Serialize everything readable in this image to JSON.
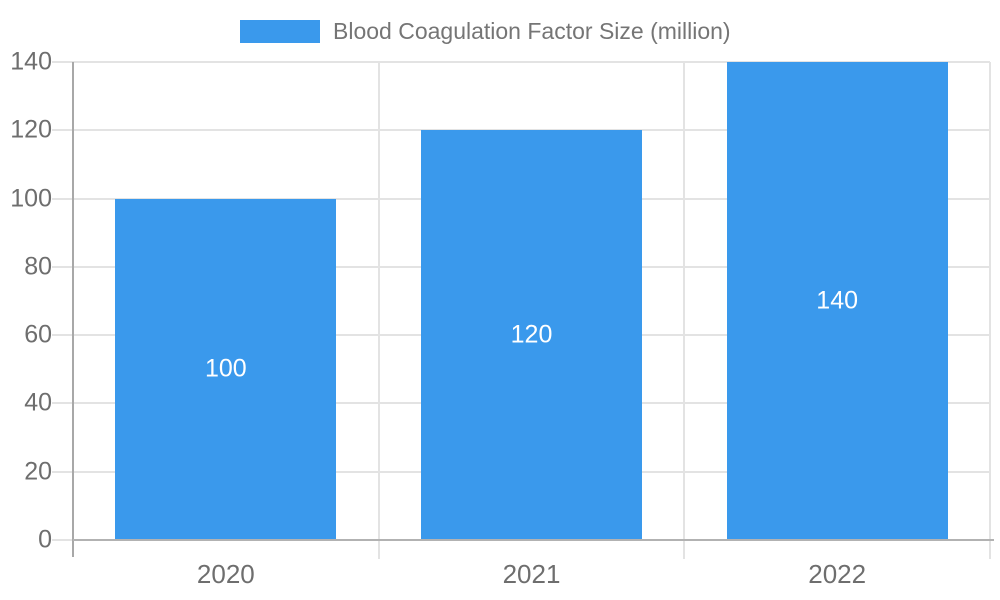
{
  "legend": {
    "label": "Blood Coagulation Factor Size (million)"
  },
  "chart_data": {
    "type": "bar",
    "title": "Blood Coagulation Factor Size (million)",
    "categories": [
      "2020",
      "2021",
      "2022"
    ],
    "values": [
      100,
      120,
      140
    ],
    "bar_labels": [
      "100",
      "120",
      "140"
    ],
    "series": [
      {
        "name": "Blood Coagulation Factor Size (million)",
        "values": [
          100,
          120,
          140
        ]
      }
    ],
    "xlabel": "",
    "ylabel": "",
    "ylim": [
      0,
      140
    ],
    "yticks": [
      0,
      20,
      40,
      60,
      80,
      100,
      120,
      140
    ],
    "ytick_step": 20,
    "legend_position": "top",
    "grid": true,
    "colors": {
      "bar": "#3A99EC",
      "bar_label": "#FFFFFF",
      "grid_line": "#E3E3E3",
      "y_axis_line": "#A8A8A8",
      "x_axis_line": "#B2B2B2",
      "tick_label": "#6E6E6E",
      "legend_text": "#757575"
    }
  }
}
